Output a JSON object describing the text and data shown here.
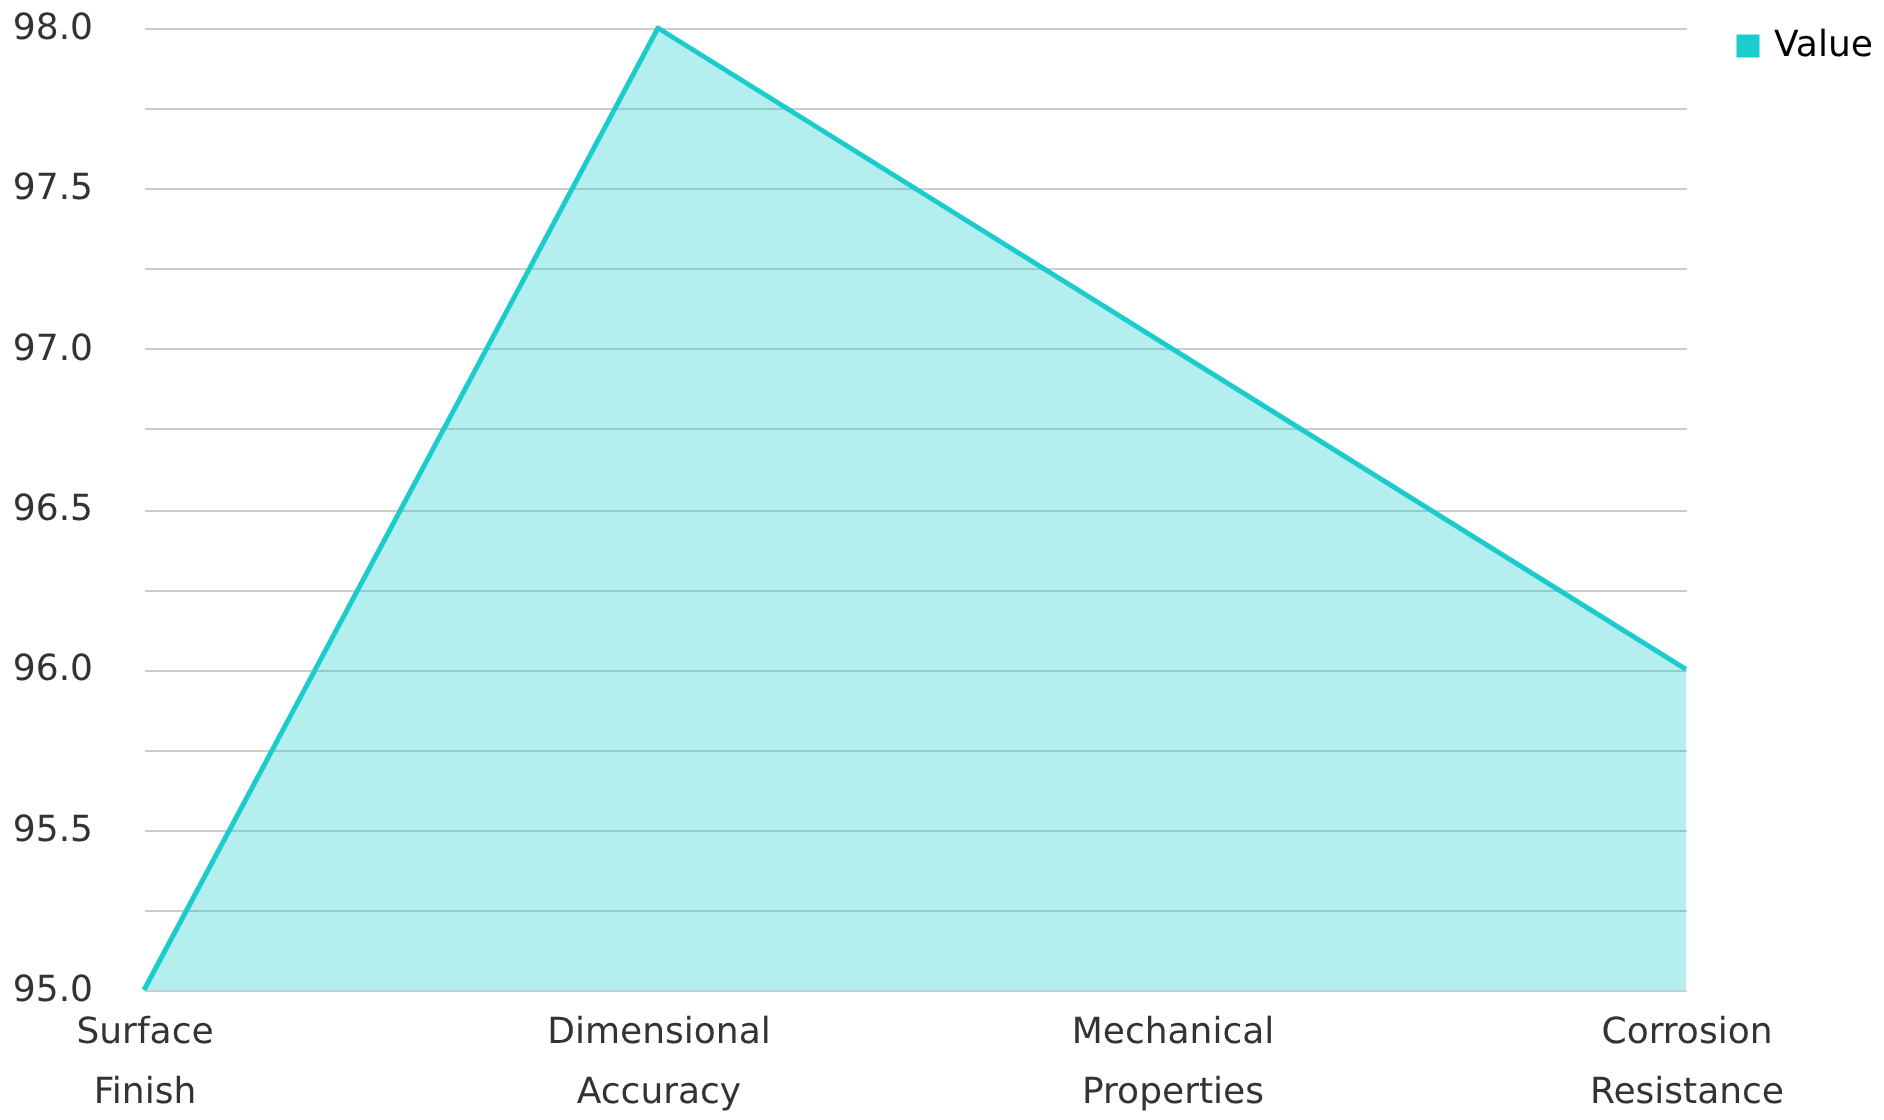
{
  "chart_data": {
    "type": "area",
    "categories": [
      "Surface Finish",
      "Dimensional Accuracy",
      "Mechanical Properties",
      "Corrosion Resistance"
    ],
    "series": [
      {
        "name": "Value",
        "color": "#1ccccc",
        "values": [
          95.0,
          98.0,
          97.0,
          96.0
        ]
      }
    ],
    "ylim": [
      95.0,
      98.0
    ],
    "yticks": [
      {
        "value": 95.0,
        "label": "95.0"
      },
      {
        "value": 95.25,
        "label": null
      },
      {
        "value": 95.5,
        "label": "95.5"
      },
      {
        "value": 95.75,
        "label": null
      },
      {
        "value": 96.0,
        "label": "96.0"
      },
      {
        "value": 96.25,
        "label": null
      },
      {
        "value": 96.5,
        "label": "96.5"
      },
      {
        "value": 96.75,
        "label": null
      },
      {
        "value": 97.0,
        "label": "97.0"
      },
      {
        "value": 97.25,
        "label": null
      },
      {
        "value": 97.5,
        "label": "97.5"
      },
      {
        "value": 97.75,
        "label": null
      },
      {
        "value": 98.0,
        "label": "98.0"
      }
    ],
    "grid": "y",
    "legend": "top right"
  }
}
